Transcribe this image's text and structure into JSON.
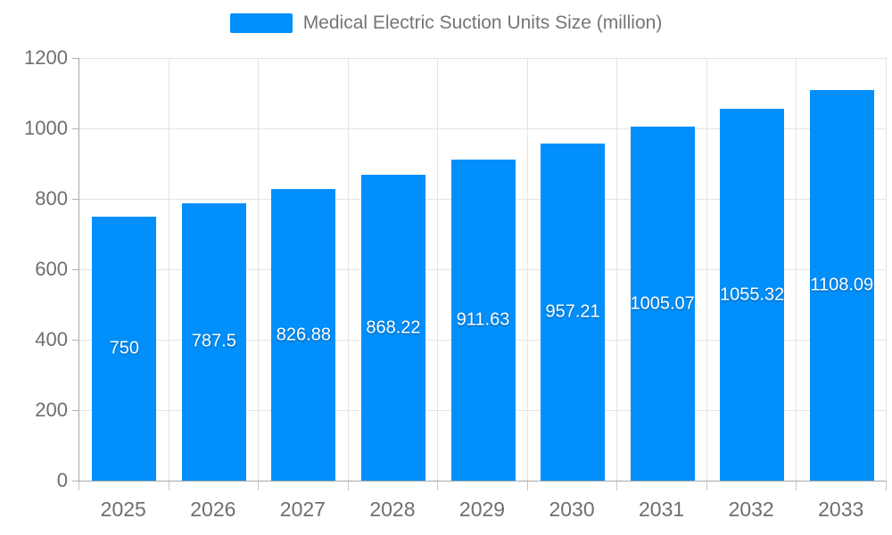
{
  "legend": {
    "title": "Medical Electric Suction Units Size (million)"
  },
  "chart_data": {
    "type": "bar",
    "title": "Medical Electric Suction Units Size (million)",
    "categories": [
      "2025",
      "2026",
      "2027",
      "2028",
      "2029",
      "2030",
      "2031",
      "2032",
      "2033"
    ],
    "values": [
      750,
      787.5,
      826.88,
      868.22,
      911.63,
      957.21,
      1005.07,
      1055.32,
      1108.09
    ],
    "value_labels": [
      "750",
      "787.5",
      "826.88",
      "868.22",
      "911.63",
      "957.21",
      "1005.07",
      "1055.32",
      "1108.09"
    ],
    "xlabel": "",
    "ylabel": "",
    "ylim": [
      0,
      1200
    ],
    "yticks": [
      0,
      200,
      400,
      600,
      800,
      1000,
      1200
    ],
    "grid": true,
    "legend_position": "top",
    "colors": {
      "bar": "#008FFB",
      "bar_label_text": "#ffffff",
      "axis_text": "#6e6e6e",
      "legend_text": "#757575",
      "grid_line": "#e4e4e4",
      "axis_line": "#a8a8a8"
    }
  }
}
